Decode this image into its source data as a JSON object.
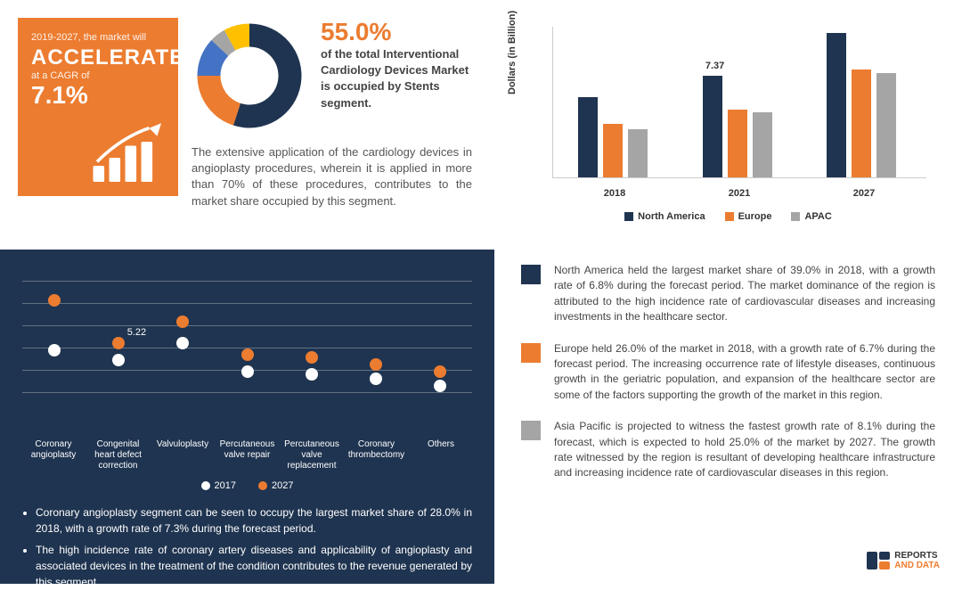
{
  "orange_box": {
    "pretitle": "2019-2027,\nthe market will",
    "big": "ACCELERATE",
    "sub": "at a CAGR of",
    "pct": "7.1%"
  },
  "donut": {
    "pct": "55.0%",
    "desc": "of the total Interventional Cardiology Devices Market is occupied by Stents segment.",
    "para": "The extensive application of the cardiology devices in angioplasty procedures, wherein it is applied in more than 70% of these procedures, contributes to the market share occupied by this segment.",
    "slices": [
      {
        "color": "#1f3450",
        "value": 55
      },
      {
        "color": "#ec7c30",
        "value": 20
      },
      {
        "color": "#4472c4",
        "value": 12
      },
      {
        "color": "#a5a5a5",
        "value": 5
      },
      {
        "color": "#ffc000",
        "value": 8
      }
    ]
  },
  "dot_chart": {
    "label_value": "5.22",
    "categories": [
      "Coronary angioplasty",
      "Congenital heart defect correction",
      "Valvuloplasty",
      "Percutaneous valve repair",
      "Percutaneous valve replacement",
      "Coronary thrombectomy",
      "Others"
    ],
    "series": [
      {
        "name": "2017",
        "color": "#ffffff",
        "y": [
          0.55,
          0.62,
          0.5,
          0.7,
          0.72,
          0.75,
          0.8
        ]
      },
      {
        "name": "2027",
        "color": "#ec7c30",
        "y": [
          0.2,
          0.5,
          0.35,
          0.58,
          0.6,
          0.65,
          0.7
        ]
      }
    ],
    "gridlines": 6
  },
  "bl_bullets": [
    "Coronary angioplasty segment can be seen to occupy the largest market share of 28.0% in 2018, with a growth rate of 7.3% during the forecast period.",
    "The high incidence rate of coronary artery diseases and applicability of angioplasty and associated devices in the treatment of the condition contributes to the revenue generated by this segment."
  ],
  "bar_chart": {
    "y_label": "Dollars (in Billion)",
    "categories": [
      "2018",
      "2021",
      "2027"
    ],
    "series": [
      {
        "name": "North America",
        "color": "#1f3450",
        "values": [
          5.8,
          7.37,
          10.5
        ]
      },
      {
        "name": "Europe",
        "color": "#ec7c30",
        "values": [
          3.9,
          4.9,
          7.8
        ]
      },
      {
        "name": "APAC",
        "color": "#a5a5a5",
        "values": [
          3.5,
          4.7,
          7.6
        ]
      }
    ],
    "ymax": 11,
    "value_label": "7.37"
  },
  "regions": [
    {
      "color": "#1f3450",
      "text": "North America held the largest market share of 39.0% in 2018, with a growth rate of 6.8% during the forecast period.  The market dominance of the region is attributed to the high incidence rate of cardiovascular diseases and increasing investments in the healthcare sector."
    },
    {
      "color": "#ec7c30",
      "text": "Europe held 26.0% of the market in 2018, with a growth rate of 6.7% during the forecast period. The increasing occurrence rate of lifestyle diseases, continuous growth in the geriatric population, and expansion of the healthcare sector are some of the factors supporting the growth of the market in this region."
    },
    {
      "color": "#a5a5a5",
      "text": "Asia Pacific is projected to witness the fastest growth rate of 8.1% during the forecast, which is expected to hold 25.0% of the market by 2027. The growth rate witnessed by the region is resultant of developing healthcare infrastructure and increasing incidence rate of cardiovascular diseases in this region."
    }
  ],
  "logo": {
    "line1": "REPORTS",
    "line2": "AND DATA"
  }
}
